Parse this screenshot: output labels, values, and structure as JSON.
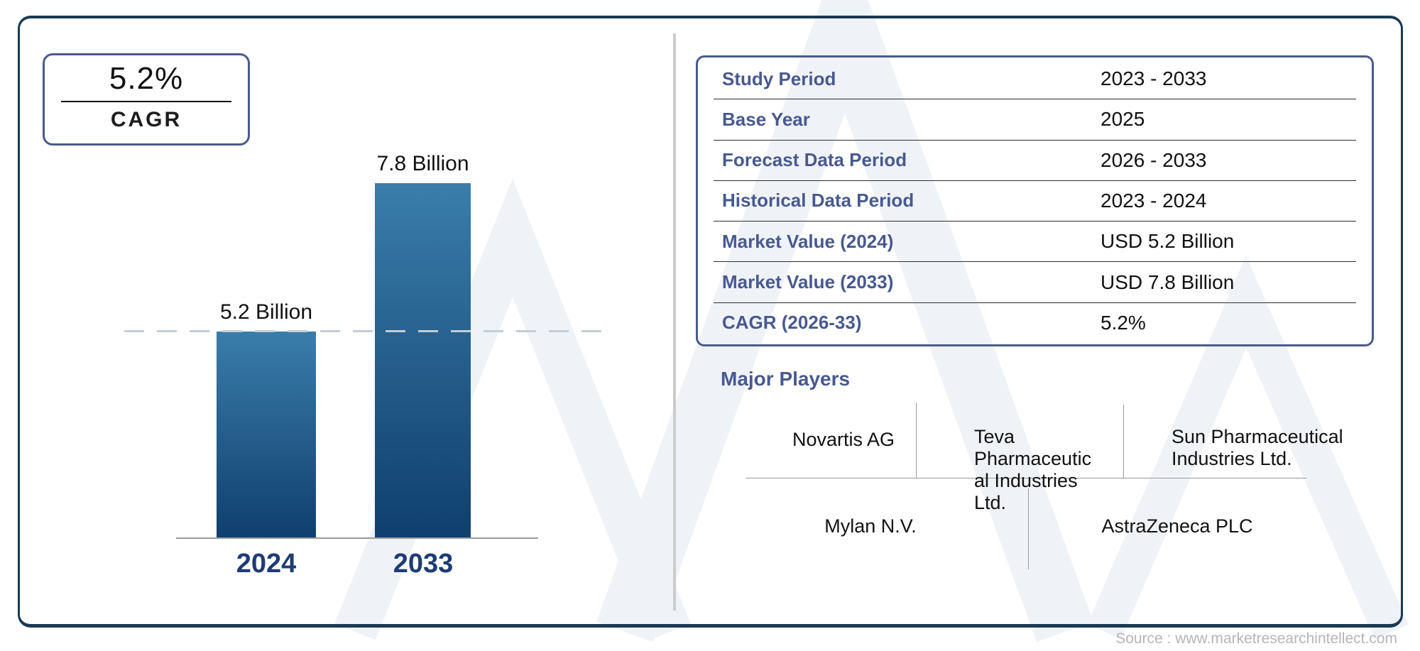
{
  "colors": {
    "outer_border": "#1a3a54",
    "accent_border": "#4a5b8c",
    "label_blue": "#47598f",
    "year_navy": "#1e3c74",
    "bar_top": "#3a7dab",
    "bar_bottom": "#0f3f6d",
    "divider_gray": "#cbcbcb",
    "source_gray": "#b5b5b5",
    "watermark": "#eff3f8"
  },
  "cagr_box": {
    "value": "5.2%",
    "label": "CAGR"
  },
  "chart_data": {
    "type": "bar",
    "title": "",
    "categories": [
      "2024",
      "2033"
    ],
    "values": [
      5.2,
      7.8
    ],
    "value_labels": [
      "5.2 Billion",
      "7.8 Billion"
    ],
    "unit": "USD Billion",
    "ylim": [
      1.58,
      7.8
    ],
    "reference_line_value": 5.2,
    "reference_line_style": "dashed gray at 2024 level",
    "legend": "none",
    "grid": "off"
  },
  "info_table": {
    "rows": [
      {
        "label": "Study Period",
        "value": "2023 - 2033"
      },
      {
        "label": "Base Year",
        "value": "2025"
      },
      {
        "label": "Forecast Data Period",
        "value": "2026 - 2033"
      },
      {
        "label": "Historical Data Period",
        "value": "2023 - 2024"
      },
      {
        "label": "Market Value (2024)",
        "value": "USD 5.2 Billion"
      },
      {
        "label": "Market Value (2033)",
        "value": "USD 7.8 Billion"
      },
      {
        "label": "CAGR (2026-33)",
        "value": "5.2%"
      }
    ]
  },
  "major_players": {
    "title": "Major Players",
    "players": [
      "Novartis AG",
      "Teva Pharmaceutical Industries Ltd.",
      "Sun Pharmaceutical Industries Ltd.",
      "Mylan N.V.",
      "AstraZeneca PLC"
    ]
  },
  "source_text": "Source : www.marketresearchintellect.com"
}
